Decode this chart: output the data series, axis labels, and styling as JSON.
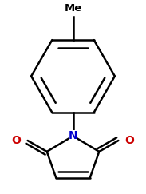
{
  "background_color": "#ffffff",
  "line_color": "#000000",
  "N_color": "#0000cd",
  "O_color": "#cc0000",
  "label_Me": "Me",
  "label_N": "N",
  "label_O_left": "O",
  "label_O_right": "O",
  "figsize": [
    1.83,
    2.43
  ],
  "dpi": 100
}
